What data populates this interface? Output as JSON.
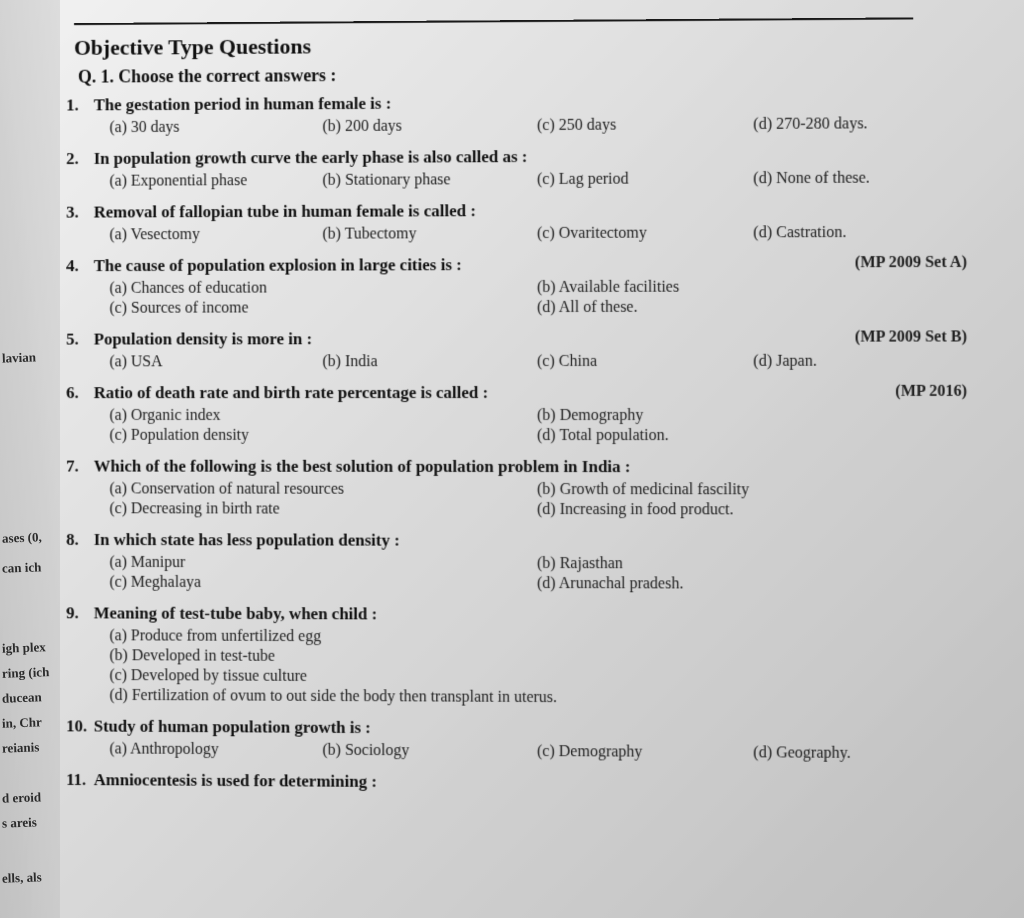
{
  "heading": "Objective Type Questions",
  "subheading": "Q. 1. Choose the correct answers :",
  "margin_labels": {
    "m1": "lavian",
    "m2": "ases (0,",
    "m3": "can ich",
    "m4": "igh plex",
    "m5": "ring (ich",
    "m6": "ducean",
    "m7": "in, Chr",
    "m8": "reianis",
    "m9": "d eroid",
    "m10": "s areis",
    "m11": "ells, als"
  },
  "questions": [
    {
      "num": "1.",
      "text": "The gestation period in human female is :",
      "context": "",
      "layout": "four-col",
      "opts": {
        "a": "(a) 30 days",
        "b": "(b) 200 days",
        "c": "(c) 250 days",
        "d": "(d) 270-280 days."
      }
    },
    {
      "num": "2.",
      "text": "In population growth curve the early phase is also called as :",
      "context": "",
      "layout": "four-col",
      "opts": {
        "a": "(a) Exponential phase",
        "b": "(b) Stationary phase",
        "c": "(c) Lag period",
        "d": "(d) None of these."
      }
    },
    {
      "num": "3.",
      "text": "Removal of fallopian tube in human female is called :",
      "context": "",
      "layout": "four-col",
      "opts": {
        "a": "(a) Vesectomy",
        "b": "(b) Tubectomy",
        "c": "(c) Ovaritectomy",
        "d": "(d) Castration."
      }
    },
    {
      "num": "4.",
      "text": "The cause of population explosion in large cities is :",
      "context": "(MP 2009 Set A)",
      "layout": "two-col",
      "opts": {
        "a": "(a) Chances of education",
        "b": "(b) Available facilities",
        "c": "(c) Sources of income",
        "d": "(d) All of these."
      }
    },
    {
      "num": "5.",
      "text": "Population density is more in :",
      "context": "(MP 2009 Set B)",
      "layout": "four-col",
      "opts": {
        "a": "(a) USA",
        "b": "(b) India",
        "c": "(c) China",
        "d": "(d) Japan."
      }
    },
    {
      "num": "6.",
      "text": "Ratio of death rate and birth rate percentage is called :",
      "context": "(MP 2016)",
      "layout": "two-col",
      "opts": {
        "a": "(a) Organic index",
        "b": "(b) Demography",
        "c": "(c) Population density",
        "d": "(d) Total population."
      }
    },
    {
      "num": "7.",
      "text": "Which of the following is the best solution of population problem in India :",
      "context": "",
      "layout": "two-col",
      "opts": {
        "a": "(a) Conservation of natural resources",
        "b": "(b) Growth of medicinal fascility",
        "c": "(c) Decreasing in birth rate",
        "d": "(d) Increasing in food product."
      }
    },
    {
      "num": "8.",
      "text": "In which state has less population density :",
      "context": "",
      "layout": "two-col",
      "opts": {
        "a": "(a) Manipur",
        "b": "(b) Rajasthan",
        "c": "(c) Meghalaya",
        "d": "(d) Arunachal pradesh."
      }
    },
    {
      "num": "9.",
      "text": "Meaning of test-tube baby, when child :",
      "context": "",
      "layout": "one-col",
      "opts": {
        "a": "(a) Produce from unfertilized egg",
        "b": "(b) Developed in test-tube",
        "c": "(c) Developed by tissue culture",
        "d": "(d) Fertilization of ovum to out side the body then transplant in uterus."
      }
    },
    {
      "num": "10.",
      "text": "Study of human population growth is :",
      "context": "",
      "layout": "four-col",
      "opts": {
        "a": "(a) Anthropology",
        "b": "(b) Sociology",
        "c": "(c) Demography",
        "d": "(d) Geography."
      }
    },
    {
      "num": "11.",
      "text": "Amniocentesis is used for determining :",
      "context": "",
      "layout": "none",
      "opts": {}
    }
  ]
}
